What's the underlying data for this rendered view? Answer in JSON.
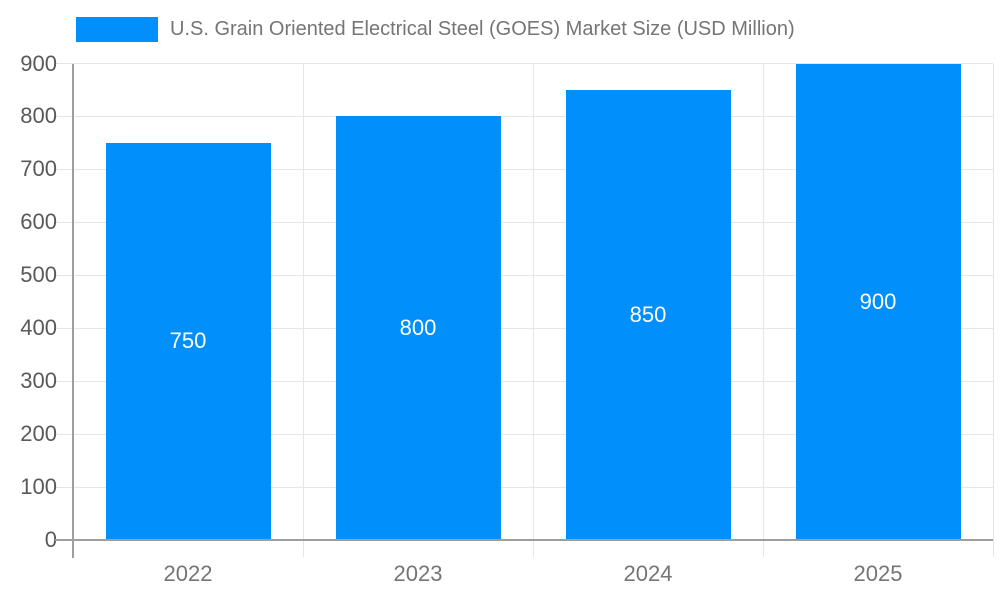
{
  "legend": {
    "label": "U.S. Grain Oriented Electrical Steel (GOES) Market Size (USD Million)"
  },
  "chart_data": {
    "type": "bar",
    "title": "U.S. Grain Oriented Electrical Steel (GOES) Market Size (USD Million)",
    "categories": [
      "2022",
      "2023",
      "2024",
      "2025"
    ],
    "values": [
      750,
      800,
      850,
      900
    ],
    "yticks": [
      0,
      100,
      200,
      300,
      400,
      500,
      600,
      700,
      800,
      900
    ],
    "ylim": [
      0,
      900
    ],
    "xlabel": "",
    "ylabel": "",
    "grid": true,
    "legend_position": "top"
  },
  "colors": {
    "bar": "#008FFB",
    "bar_label": "#FFFFFF",
    "gridline": "#E6E6E6",
    "axis_line": "#9E9E9E",
    "y_tick_label": "#58595B",
    "x_tick_label": "#757575",
    "legend_text": "#757575",
    "background": "#FFFFFF"
  }
}
